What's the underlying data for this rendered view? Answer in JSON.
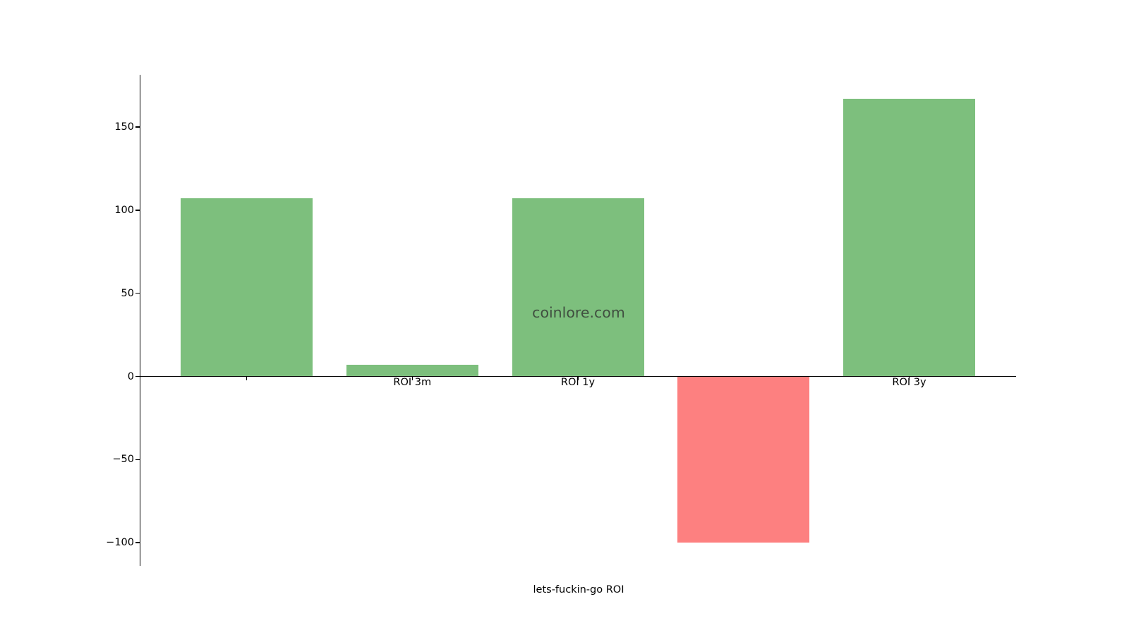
{
  "watermark": "coinlore.com",
  "chart_data": {
    "type": "bar",
    "title": "",
    "xlabel": "lets-fuckin-go ROI",
    "ylabel": "",
    "categories": [
      "",
      "ROI 3m",
      "ROI 1y",
      "",
      "ROI 3y"
    ],
    "values": [
      107,
      7,
      107,
      -100,
      167
    ],
    "bar_colors": [
      "#7dbf7d",
      "#7dbf7d",
      "#7dbf7d",
      "#fd8080",
      "#7dbf7d"
    ],
    "positive_color": "#7dbf7d",
    "negative_color": "#fd8080",
    "axis_color": "#000000",
    "yticks": [
      150,
      100,
      50,
      0,
      -50,
      -100
    ],
    "ytick_labels": [
      "150",
      "100",
      "50",
      "0",
      "−50",
      "−100"
    ],
    "ylim": [
      -113.5,
      181
    ],
    "grid": false,
    "legend": "none",
    "notes": "x tick marks exist under every bar; labels visible only for bars 2, 3 and 5; negative bar overlaps its tick mark"
  }
}
